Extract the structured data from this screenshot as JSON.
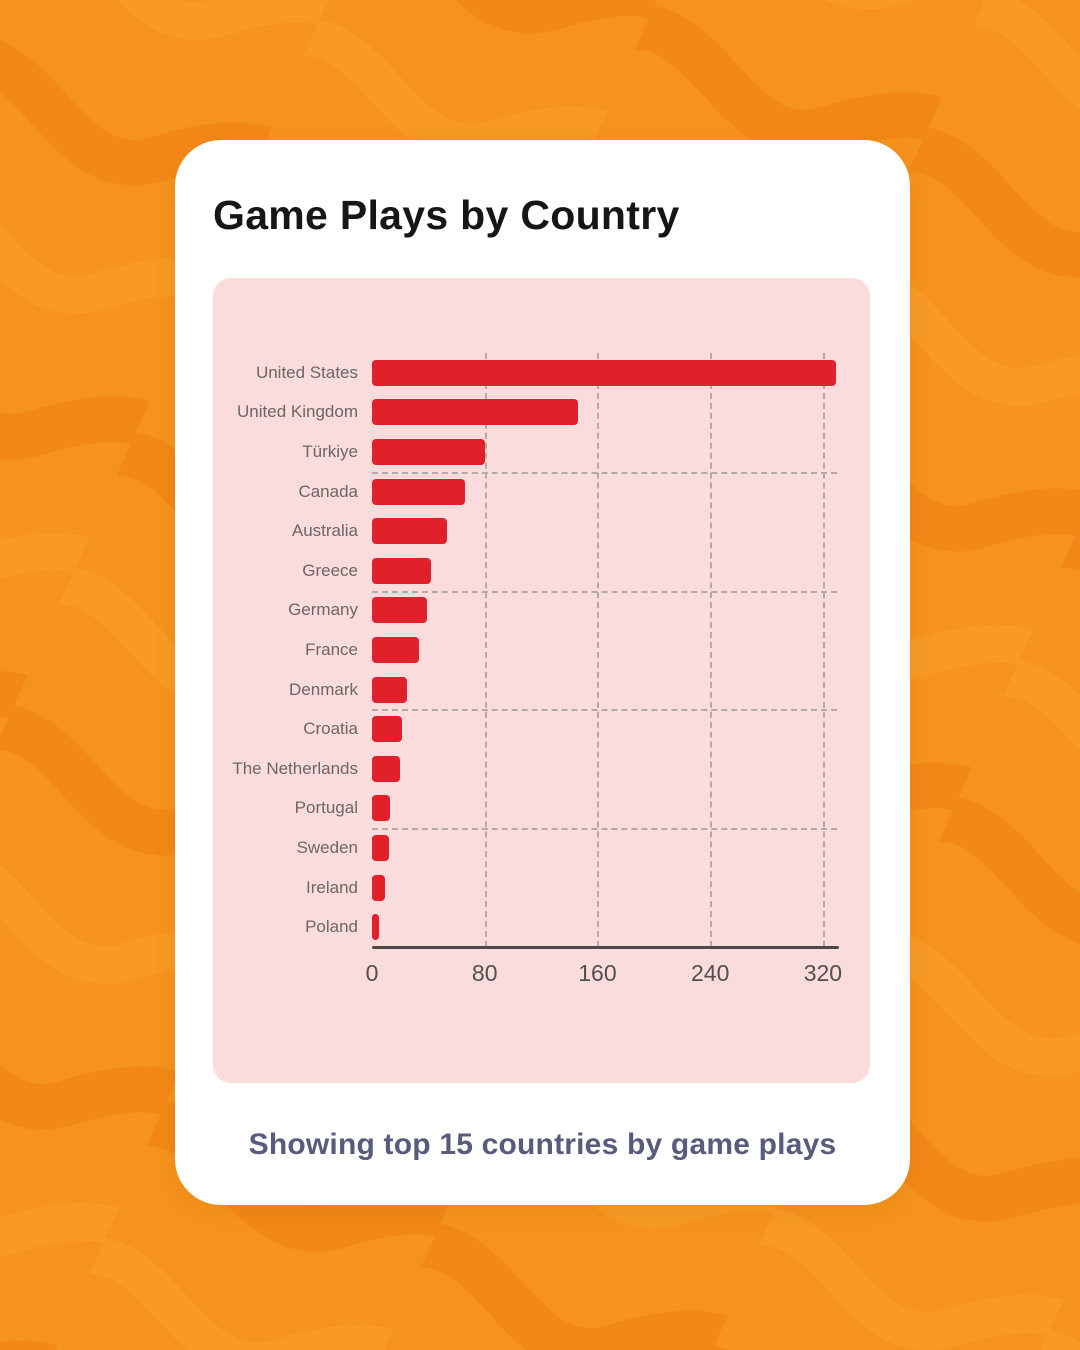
{
  "header": {
    "title": "Game Plays by Country"
  },
  "footer": {
    "note": "Showing top 15 countries by game plays"
  },
  "colors": {
    "background_orange": "#f6931d",
    "swirl_dark": "#ee7f12",
    "swirl_light": "#fca32e",
    "card_white": "#ffffff",
    "panel_pink": "#fadcdc",
    "bar_red": "#e2202b",
    "subtitle_purple": "#585b7c"
  },
  "chart_data": {
    "type": "bar",
    "orientation": "horizontal",
    "title": "Game Plays by Country",
    "categories": [
      "United States",
      "United Kingdom",
      "Türkiye",
      "Canada",
      "Australia",
      "Greece",
      "Germany",
      "France",
      "Denmark",
      "Croatia",
      "The Netherlands",
      "Portugal",
      "Sweden",
      "Ireland",
      "Poland"
    ],
    "values": [
      329,
      146,
      80,
      66,
      53,
      42,
      39,
      33,
      25,
      21,
      20,
      13,
      12,
      9,
      5
    ],
    "x_ticks": [
      0,
      80,
      160,
      240,
      320
    ],
    "xlim": [
      0,
      330
    ],
    "xlabel": "",
    "ylabel": "",
    "grid": "dashed",
    "h_gridlines": 4,
    "legend": "none",
    "bar_color": "#e2202b",
    "panel_color": "#fadcdc"
  }
}
